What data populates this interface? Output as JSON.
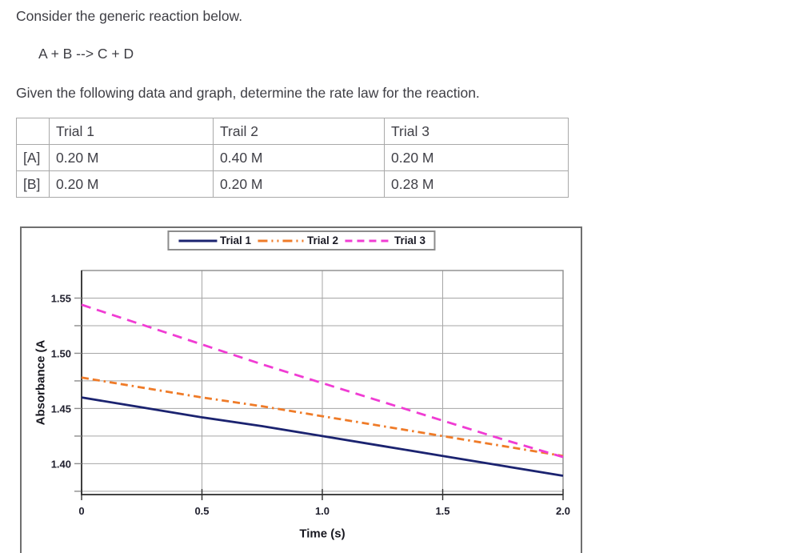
{
  "page": {
    "intro": "Consider the generic reaction below.",
    "equation": "A + B --> C + D",
    "prompt": "Given the following data and graph, determine the rate law for the reaction."
  },
  "table": {
    "headers": [
      "",
      "Trial 1",
      "Trail 2",
      "Trial 3"
    ],
    "rows": [
      {
        "label": "[A]",
        "values": [
          "0.20 M",
          "0.40 M",
          "0.20 M"
        ]
      },
      {
        "label": "[B]",
        "values": [
          "0.20 M",
          "0.20 M",
          "0.28 M"
        ]
      }
    ]
  },
  "chart_data": {
    "type": "line",
    "title": "",
    "xlabel": "Time (s)",
    "ylabel": "Absorbance (A",
    "xlim": [
      0,
      2.0
    ],
    "ylim": [
      1.372,
      1.575
    ],
    "xticks": [
      0,
      0.5,
      1.0,
      1.5,
      2.0
    ],
    "xtick_labels": [
      "0",
      "0.5",
      "1.0",
      "1.5",
      "2.0"
    ],
    "yticks": [
      1.4,
      1.45,
      1.5,
      1.55
    ],
    "ytick_labels": [
      "1.40",
      "1.45",
      "1.50",
      "1.55"
    ],
    "grid": {
      "y_values": [
        1.375,
        1.4,
        1.425,
        1.45,
        1.475,
        1.5,
        1.525,
        1.55
      ],
      "x_values": [
        0.5,
        1.0,
        1.5
      ]
    },
    "legend_position": "top-center",
    "x": [
      0,
      0.25,
      0.5,
      0.75,
      1.0,
      1.25,
      1.5,
      1.75,
      2.0
    ],
    "series": [
      {
        "name": "Trial 1",
        "color": "#1b2370",
        "style": "solid",
        "values": [
          1.46,
          1.451,
          1.442,
          1.434,
          1.425,
          1.416,
          1.407,
          1.398,
          1.389
        ]
      },
      {
        "name": "Trial 2",
        "color": "#ef7b28",
        "style": "dash-dash-dot",
        "values": [
          1.478,
          1.469,
          1.46,
          1.452,
          1.443,
          1.434,
          1.425,
          1.416,
          1.407
        ]
      },
      {
        "name": "Trial 3",
        "color": "#f03cd3",
        "style": "dashed",
        "values": [
          1.544,
          1.526,
          1.508,
          1.49,
          1.473,
          1.456,
          1.439,
          1.422,
          1.406
        ]
      }
    ],
    "colors": {
      "grid": "#a6a6a6",
      "frame": "#8c8c8c",
      "axis": "#2f2f2f"
    }
  }
}
